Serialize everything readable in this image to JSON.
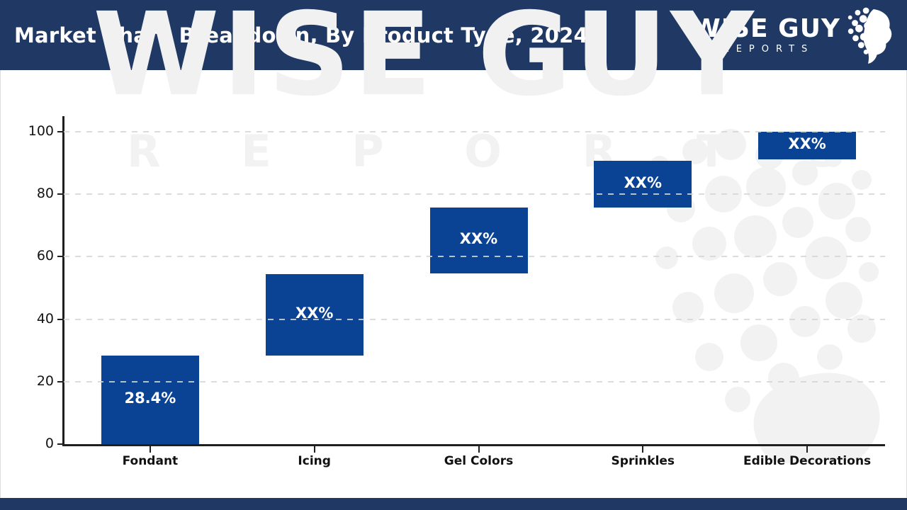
{
  "header": {
    "title": "Market Share Breakdown, By Product Type, 2024",
    "logo": {
      "line1": "WISE GUY",
      "line2": "REPORTS"
    }
  },
  "watermark": {
    "line1": "WISE GUY",
    "line2": "R E P O R T S"
  },
  "colors": {
    "header_bg": "#1F3864",
    "footer_bg": "#1F3864",
    "bar": "#0a4294",
    "bar_label_text": "#ffffff",
    "axis": "#1f1f1f",
    "gridline": "#d6d6d6",
    "watermark": "#f1f1f1"
  },
  "chart_data": {
    "type": "bar",
    "subtype": "waterfall",
    "title": "Market Share Breakdown, By Product Type, 2024",
    "xlabel": "",
    "ylabel": "",
    "categories": [
      "Fondant",
      "Icing",
      "Gel Colors",
      "Sprinkles",
      "Edible Decorations"
    ],
    "series": [
      {
        "category": "Fondant",
        "start": 0,
        "end": 28.4,
        "label": "28.4%"
      },
      {
        "category": "Icing",
        "start": 28.4,
        "end": 54.5,
        "label": "XX%"
      },
      {
        "category": "Gel Colors",
        "start": 54.7,
        "end": 75.7,
        "label": "XX%"
      },
      {
        "category": "Sprinkles",
        "start": 75.8,
        "end": 90.8,
        "label": "XX%"
      },
      {
        "category": "Edible Decorations",
        "start": 91.2,
        "end": 100,
        "label": "XX%"
      }
    ],
    "yticks": [
      0,
      20,
      40,
      60,
      80,
      100
    ],
    "ylim": [
      0,
      105
    ],
    "grid": "horizontal-dashed",
    "legend": "none"
  }
}
